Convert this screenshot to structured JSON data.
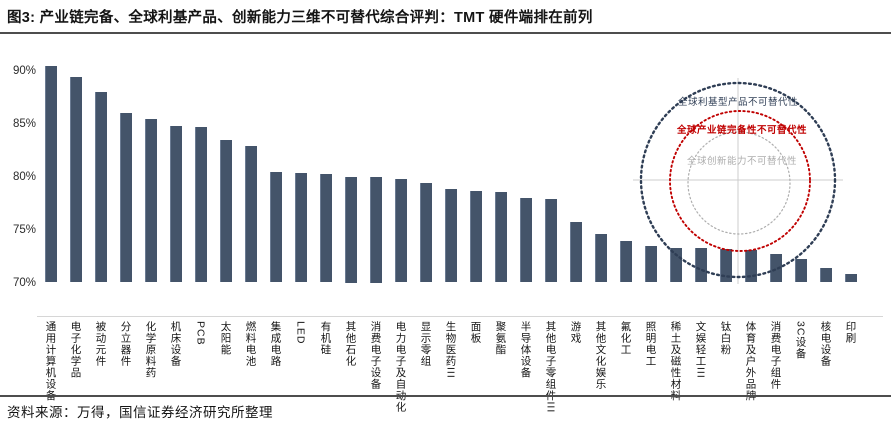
{
  "title": "图3: 产业链完备、全球利基产品、创新能力三维不可替代综合评判：TMT 硬件端排在前列",
  "source": "资料来源：万得，国信证券经济研究所整理",
  "chart_data": {
    "type": "bar",
    "title": "产业链完备、全球利基产品、创新能力三维不可替代综合评判",
    "categories": [
      "通用计算机设备",
      "电子化学品",
      "被动元件",
      "分立器件",
      "化学原料药",
      "机床设备",
      "PCB",
      "太阳能",
      "燃料电池",
      "集成电路",
      "LED",
      "有机硅",
      "其他石化",
      "消费电子设备",
      "电力电子及自动化",
      "显示零组",
      "生物医药III",
      "面板",
      "聚氨酯",
      "半导体设备",
      "其他电子零组件III",
      "游戏",
      "其他文化娱乐",
      "氟化工",
      "照明电工",
      "稀土及磁性材料",
      "文娱轻工III",
      "钛白粉",
      "体育及户外品牌",
      "消费电子组件",
      "3C设备",
      "核电设备",
      "印刷"
    ],
    "values": [
      90.4,
      89.4,
      88.0,
      86.0,
      85.4,
      84.8,
      84.7,
      83.4,
      82.9,
      80.4,
      80.3,
      80.2,
      80.0,
      80.0,
      79.8,
      79.4,
      78.8,
      78.6,
      78.5,
      78.0,
      77.9,
      75.7,
      74.6,
      73.9,
      73.4,
      73.3,
      73.3,
      73.2,
      73.1,
      72.7,
      72.2,
      71.4,
      70.8
    ],
    "xlabel": "",
    "ylabel": "",
    "ylim": [
      70,
      91
    ],
    "yticks": [
      {
        "label": "90%",
        "value": 90
      },
      {
        "label": "85%",
        "value": 85
      },
      {
        "label": "80%",
        "value": 80
      },
      {
        "label": "75%",
        "value": 75
      },
      {
        "label": "70%",
        "value": 70
      }
    ],
    "grid": false,
    "legend_position": "none",
    "bar_color": "#44546A",
    "inset": {
      "rings": [
        {
          "label": "全球利基型产品不可替代性",
          "color": "#2F3E55"
        },
        {
          "label": "全球产业链完备性不可替代性",
          "color": "#C00000"
        },
        {
          "label": "全球创新能力不可替代性",
          "color": "#ADADAD"
        }
      ]
    }
  }
}
